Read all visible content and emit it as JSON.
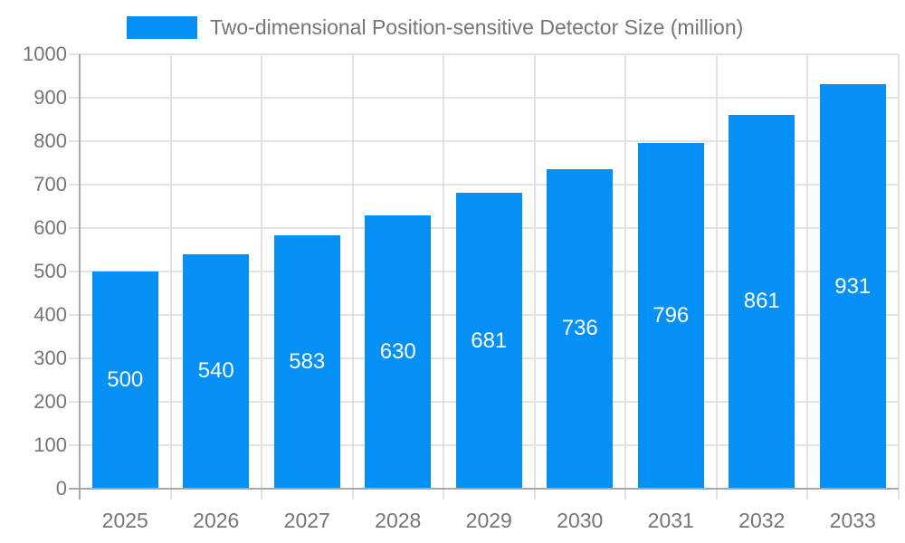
{
  "chart_data": {
    "type": "bar",
    "title": "Two-dimensional Position-sensitive Detector Size (million)",
    "categories": [
      "2025",
      "2026",
      "2027",
      "2028",
      "2029",
      "2030",
      "2031",
      "2032",
      "2033"
    ],
    "values": [
      500,
      540,
      583,
      630,
      681,
      736,
      796,
      861,
      931
    ],
    "xlabel": "",
    "ylabel": "",
    "ylim": [
      0,
      1000
    ],
    "y_ticks": [
      0,
      100,
      200,
      300,
      400,
      500,
      600,
      700,
      800,
      900,
      1000
    ],
    "grid": "both",
    "legend_position": "top",
    "bar_labels_visible": true,
    "colors": {
      "bar": "#0590F5",
      "bar_label_text": "#FFFFFF",
      "axis_text": "#757575",
      "grid_line": "#E2E2E2",
      "axis_line": "#A8A8A8",
      "background": "#FFFFFF"
    }
  }
}
